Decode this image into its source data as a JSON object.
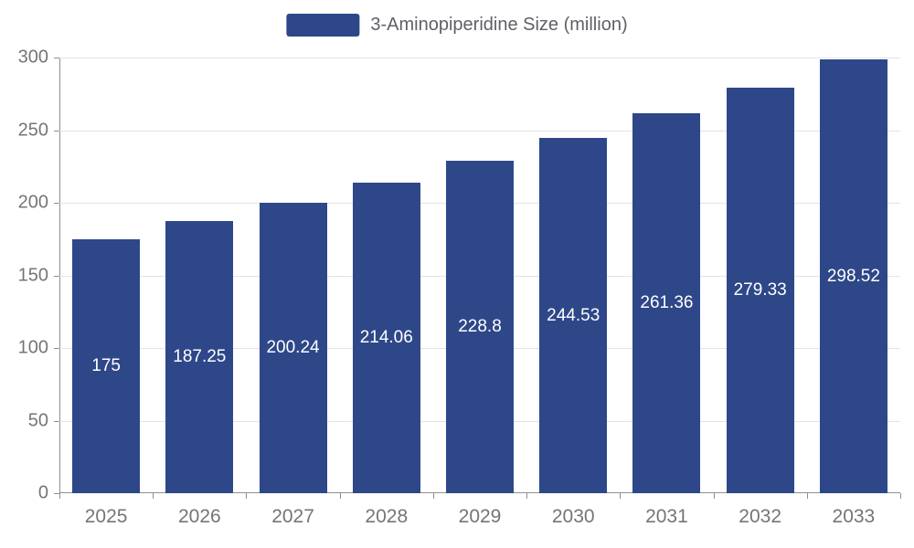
{
  "chart_data": {
    "type": "bar",
    "title": "3-Aminopiperidine Size (million)",
    "categories": [
      "2025",
      "2026",
      "2027",
      "2028",
      "2029",
      "2030",
      "2031",
      "2032",
      "2033"
    ],
    "values": [
      175,
      187.25,
      200.24,
      214.06,
      228.8,
      244.53,
      261.36,
      279.33,
      298.52
    ],
    "value_labels": [
      "175",
      "187.25",
      "200.24",
      "214.06",
      "228.8",
      "244.53",
      "261.36",
      "279.33",
      "298.52"
    ],
    "xlabel": "",
    "ylabel": "",
    "ylim": [
      0,
      300
    ],
    "yticks": [
      0,
      50,
      100,
      150,
      200,
      250,
      300
    ],
    "grid": true,
    "legend_position": "top-center",
    "colors": {
      "bar": "#2e4789",
      "value_label": "#ffffff",
      "grid_line": "#e3e3e3",
      "axis_line": "#8f8f8f",
      "tick_text": "#757575",
      "legend_text": "#5e6066",
      "background": "#ffffff"
    }
  }
}
